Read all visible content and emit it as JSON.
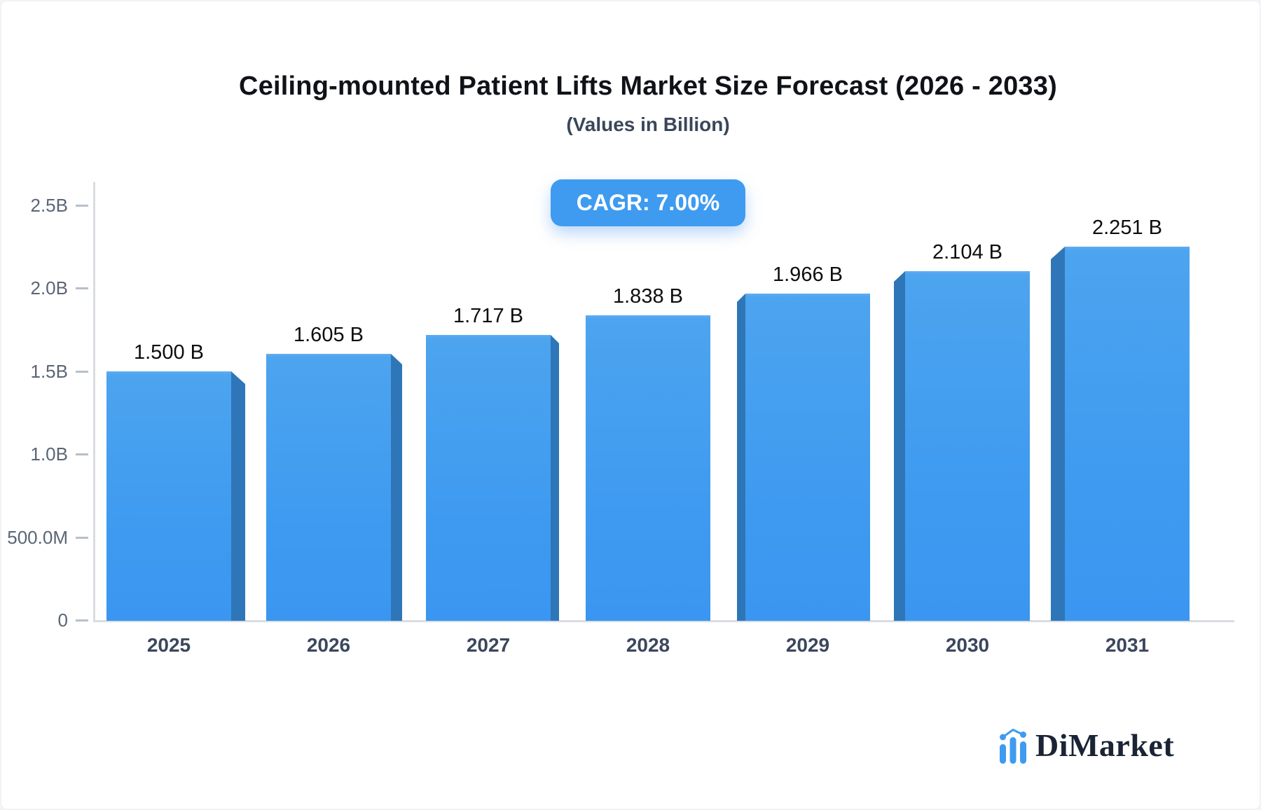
{
  "title": "Ceiling-mounted Patient Lifts Market Size Forecast (2026 - 2033)",
  "subtitle": "(Values in Billion)",
  "badge": {
    "label": "CAGR: 7.00%"
  },
  "logo": {
    "text": "DiMarket",
    "icon": "bar-chart-logo-icon"
  },
  "colors": {
    "badge_bg": "#3e9bf0",
    "badge_text": "#ffffff",
    "bar_face": "#3f9bf0",
    "bar_side": "#2e76b7",
    "axis": "#d9dce1",
    "tick_text": "#5a6576",
    "year_text": "#3b475c",
    "value_text": "#0c0d0f",
    "title_text": "#0f1217",
    "subtitle_text": "#3a4659",
    "logo_text": "#1a2436",
    "logo_icon": "#3f9bf0"
  },
  "chart_data": {
    "type": "bar",
    "title": "Ceiling-mounted Patient Lifts Market Size Forecast (2026 - 2033)",
    "subtitle": "(Values in Billion)",
    "annotation": "CAGR: 7.00%",
    "categories": [
      "2025",
      "2026",
      "2027",
      "2028",
      "2029",
      "2030",
      "2031"
    ],
    "values": [
      1.5,
      1.605,
      1.717,
      1.838,
      1.966,
      2.104,
      2.251
    ],
    "bar_labels": [
      "1.500 B",
      "1.605 B",
      "1.717 B",
      "1.838 B",
      "1.966 B",
      "2.104 B",
      "2.251 B"
    ],
    "xlabel": "",
    "ylabel": "",
    "ylim": [
      0,
      2.5
    ],
    "yticks": [
      {
        "label": "2.5B",
        "value": 2.5
      },
      {
        "label": "2.0B",
        "value": 2.0
      },
      {
        "label": "1.5B",
        "value": 1.5
      },
      {
        "label": "1.0B",
        "value": 1.0
      },
      {
        "label": "500.0M",
        "value": 0.5
      },
      {
        "label": "0",
        "value": 0
      }
    ],
    "grid": false,
    "legend": false
  }
}
